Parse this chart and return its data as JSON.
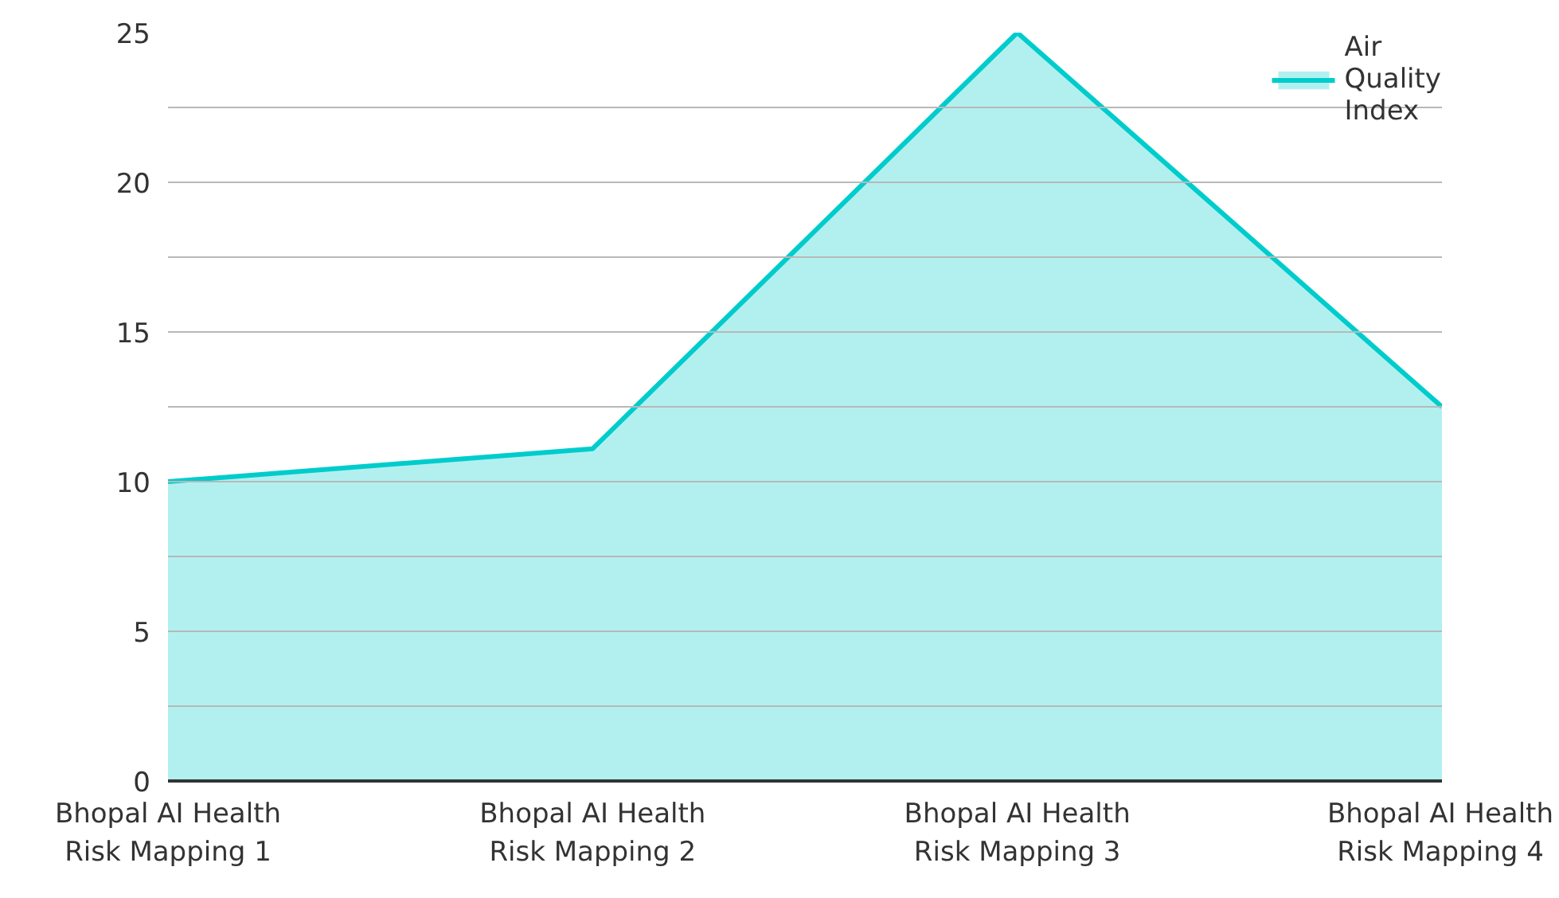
{
  "chart_data": {
    "type": "area",
    "categories": [
      "Bhopal AI Health Risk Mapping 1",
      "Bhopal AI Health Risk Mapping 2",
      "Bhopal AI Health Risk Mapping 3",
      "Bhopal AI Health Risk Mapping 4"
    ],
    "series": [
      {
        "name": "Air Quality Index",
        "color": "#00cccc",
        "values": [
          10,
          11.1,
          25,
          12.5
        ]
      }
    ],
    "ylim": [
      0,
      25
    ],
    "yticks": [
      0,
      {
        "value": 2.5,
        "label": null
      },
      5,
      {
        "value": 7.5,
        "label": null
      },
      10,
      {
        "value": 12.5,
        "label": null
      },
      15,
      {
        "value": 17.5,
        "label": null
      },
      20,
      {
        "value": 22.5,
        "label": null
      },
      25
    ],
    "grid": "y",
    "legend": "top right"
  }
}
